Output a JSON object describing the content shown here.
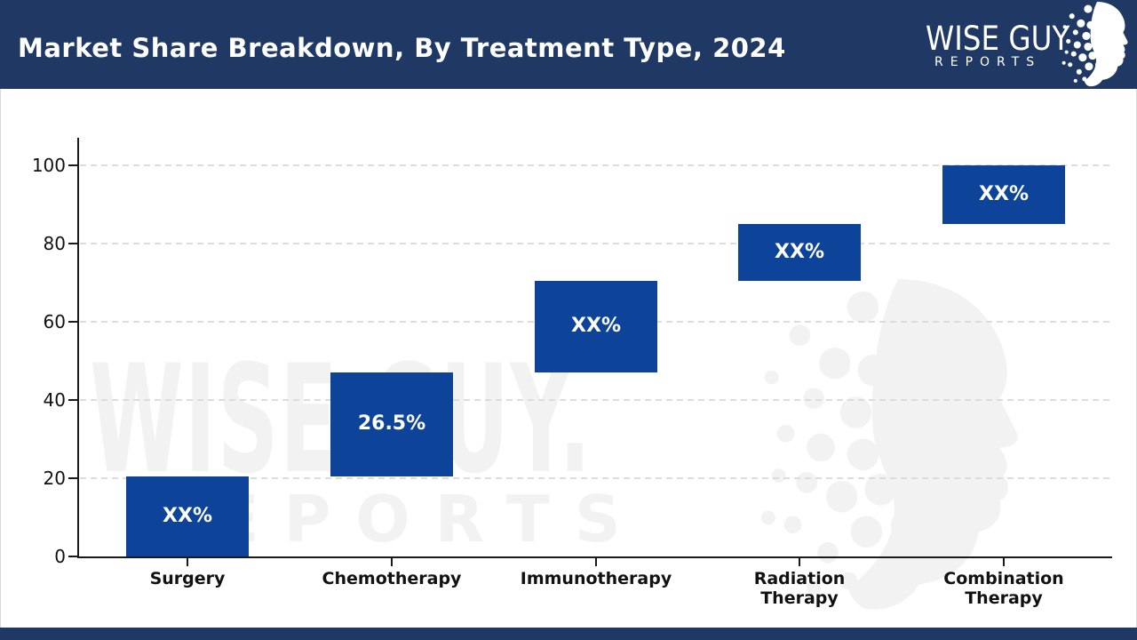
{
  "header": {
    "title": "Market Share Breakdown, By Treatment Type, 2024",
    "logo": {
      "brand": "WISE GUY",
      "sub": "REPORTS"
    },
    "bg_color": "#1f3864"
  },
  "watermark": {
    "brand": "WISE GUY.",
    "sub": "REPORTS"
  },
  "chart_data": {
    "type": "bar",
    "subtype": "floating-waterfall",
    "title": "Market Share Breakdown, By Treatment Type, 2024",
    "xlabel": "",
    "ylabel": "",
    "categories": [
      "Surgery",
      "Chemotherapy",
      "Immunotherapy",
      "Radiation Therapy",
      "Combination Therapy"
    ],
    "segments": [
      {
        "category": "Surgery",
        "start": 0,
        "end": 20.5,
        "label": "XX%"
      },
      {
        "category": "Chemotherapy",
        "start": 20.5,
        "end": 47,
        "label": "26.5%"
      },
      {
        "category": "Immunotherapy",
        "start": 47,
        "end": 70.5,
        "label": "XX%"
      },
      {
        "category": "Radiation Therapy",
        "start": 70.5,
        "end": 85,
        "label": "XX%"
      },
      {
        "category": "Combination Therapy",
        "start": 85,
        "end": 100,
        "label": "XX%"
      }
    ],
    "yticks": [
      0,
      20,
      40,
      60,
      80,
      100
    ],
    "ylim": [
      0,
      107
    ],
    "grid": "horizontal-dashed",
    "legend": "none",
    "bar_color": "#0d4499",
    "bar_label_color": "#ffffff",
    "axis_color": "#1a1a1a",
    "gridline_color": "#dcdcdc"
  }
}
